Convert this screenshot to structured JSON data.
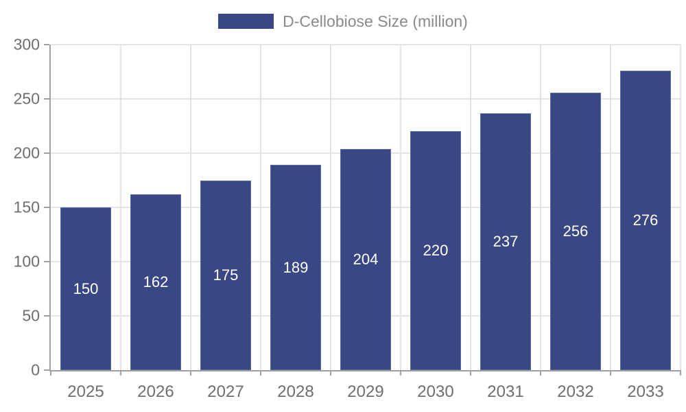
{
  "legend": {
    "label": "D-Cellobiose Size (million)"
  },
  "chart_data": {
    "type": "bar",
    "title": "",
    "xlabel": "",
    "ylabel": "",
    "categories": [
      "2025",
      "2026",
      "2027",
      "2028",
      "2029",
      "2030",
      "2031",
      "2032",
      "2033"
    ],
    "series": [
      {
        "name": "D-Cellobiose Size (million)",
        "values": [
          150,
          162,
          175,
          189,
          204,
          220,
          237,
          256,
          276
        ]
      }
    ],
    "value_labels_shown": true,
    "ylim": [
      0,
      300
    ],
    "yticks": [
      0,
      50,
      100,
      150,
      200,
      250,
      300
    ],
    "grid": "both",
    "legend_position": "top-center",
    "colors": {
      "bar_fill": "#394885",
      "bar_border": "#5c6ba4",
      "value_label": "#ffffff",
      "gridline": "#e4e4e4",
      "axis_line": "#a0a0a0",
      "tick_mark": "#a0a0a0",
      "axis_tick_label": "#6e6e6e",
      "legend_text": "#8a8a8a",
      "background": "#ffffff"
    }
  }
}
